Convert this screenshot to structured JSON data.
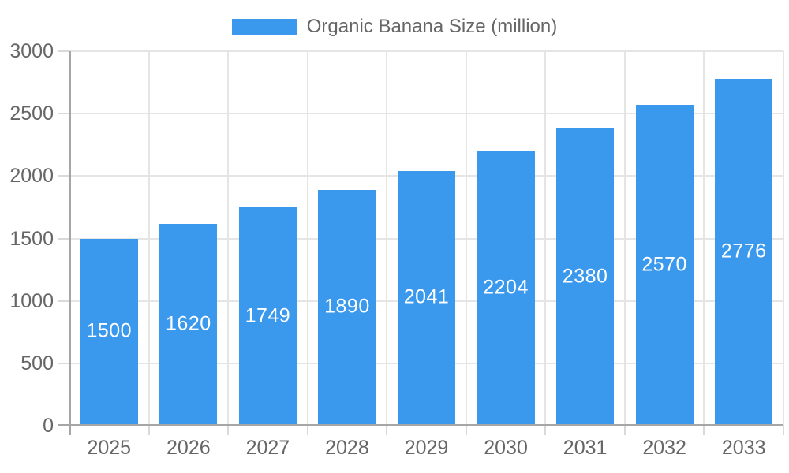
{
  "chart_data": {
    "type": "bar",
    "title": "Organic Banana Size (million)",
    "categories": [
      "2025",
      "2026",
      "2027",
      "2028",
      "2029",
      "2030",
      "2031",
      "2032",
      "2033"
    ],
    "values": [
      1500,
      1620,
      1749,
      1890,
      2041,
      2204,
      2380,
      2570,
      2776
    ],
    "xlabel": "",
    "ylabel": "",
    "ylim": [
      0,
      3000
    ],
    "ytick_step": 500,
    "y_tick_labels": [
      "0",
      "500",
      "1000",
      "1500",
      "2000",
      "2500",
      "3000"
    ],
    "grid": true,
    "legend_position": "top",
    "value_label_position": "inside-center",
    "colors": {
      "bar": "#3B99ED",
      "grid": "#E5E5E5",
      "tick": "#D9D9D9",
      "axis": "#A6A6A6",
      "text": "#666666",
      "value_label": "#FFFFFF",
      "background": "#FFFFFF"
    }
  }
}
